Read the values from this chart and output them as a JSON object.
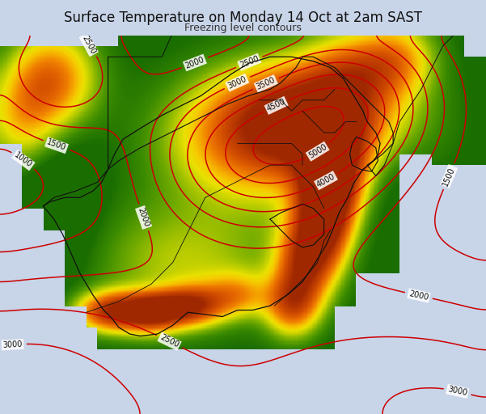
{
  "title": "Surface Temperature on Monday 14 Oct at 2am SAST",
  "subtitle": "Freezing level contours",
  "title_fontsize": 12,
  "subtitle_fontsize": 9,
  "bg_color": "#c8d4e8",
  "contour_color": "#cc0000",
  "border_color": "#111111",
  "fig_width": 6.01,
  "fig_height": 5.12,
  "lon_min": 14.5,
  "lon_max": 37.0,
  "lat_min": -38.5,
  "lat_max": -21.0
}
